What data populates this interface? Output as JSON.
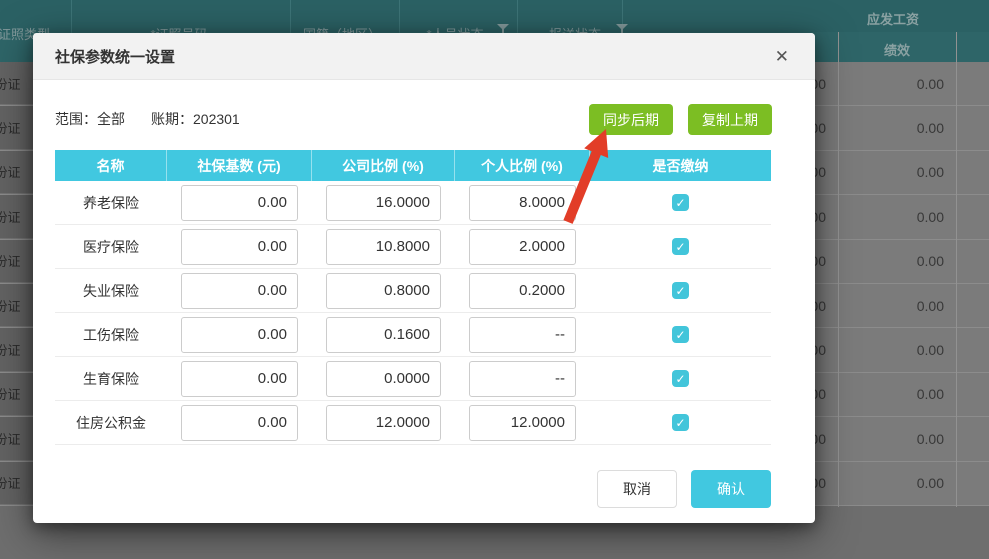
{
  "colors": {
    "accent_cyan": "#41c8e0",
    "accent_green": "#7cbe23",
    "arrow_red": "#e23d28",
    "teal_header": "#2e6568"
  },
  "background": {
    "columns": [
      "证照类型",
      "*证照号码",
      "国籍（地区）",
      "*人员状态",
      "报送状态"
    ],
    "salary_group_label": "应发工资",
    "performance_label": "绩效",
    "id_type_value": "居民身份证",
    "amount_value": "0.00",
    "row_count": 10
  },
  "modal": {
    "title": "社保参数统一设置",
    "close_icon": "✕",
    "scope_label": "范围：",
    "scope_value": "全部",
    "period_label": "账期：",
    "period_value": "202301",
    "sync_button": "同步后期",
    "copy_button": "复制上期",
    "table": {
      "headers": [
        "名称",
        "社保基数 (元)",
        "公司比例 (%)",
        "个人比例 (%)",
        "是否缴纳"
      ],
      "rows": [
        {
          "name": "养老保险",
          "base": "0.00",
          "company": "16.0000",
          "personal": "8.0000",
          "paid": true
        },
        {
          "name": "医疗保险",
          "base": "0.00",
          "company": "10.8000",
          "personal": "2.0000",
          "paid": true
        },
        {
          "name": "失业保险",
          "base": "0.00",
          "company": "0.8000",
          "personal": "0.2000",
          "paid": true
        },
        {
          "name": "工伤保险",
          "base": "0.00",
          "company": "0.1600",
          "personal": "--",
          "paid": true
        },
        {
          "name": "生育保险",
          "base": "0.00",
          "company": "0.0000",
          "personal": "--",
          "paid": true
        },
        {
          "name": "住房公积金",
          "base": "0.00",
          "company": "12.0000",
          "personal": "12.0000",
          "paid": true
        }
      ]
    },
    "cancel_button": "取消",
    "confirm_button": "确认"
  },
  "icons": {
    "check": "✓"
  }
}
